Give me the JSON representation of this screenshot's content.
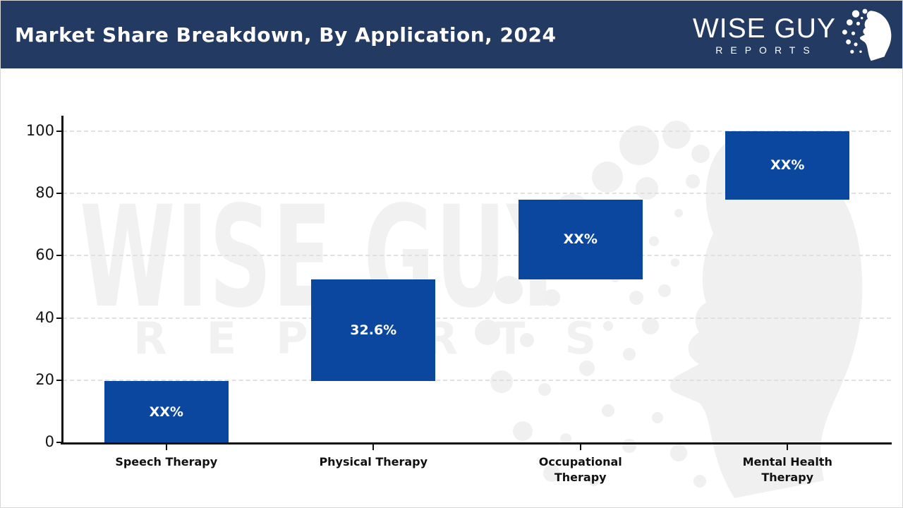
{
  "header": {
    "title": "Market Share Breakdown, By Application, 2024",
    "logo": {
      "line1": "WISE GUY",
      "line2": "REPORTS"
    }
  },
  "watermark": {
    "line1": "WISE GUY",
    "line2": "REPORTS"
  },
  "colors": {
    "header_bg": "#233a63",
    "bar": "#0b479f",
    "grid": "#e0e0e0",
    "axis": "#111111",
    "watermark": "#f1f1f1",
    "logo_text": "#ffffff"
  },
  "chart_data": {
    "type": "bar",
    "subtype": "floating-segment-waterfall",
    "title": "Market Share Breakdown, By Application, 2024",
    "categories": [
      "Speech Therapy",
      "Physical Therapy",
      "Occupational Therapy",
      "Mental Health Therapy"
    ],
    "segments": [
      {
        "category": "Speech Therapy",
        "start": 0,
        "end": 19.7,
        "label": "XX%"
      },
      {
        "category": "Physical Therapy",
        "start": 19.7,
        "end": 52.3,
        "label": "32.6%"
      },
      {
        "category": "Occupational Therapy",
        "start": 52.3,
        "end": 78.1,
        "label": "XX%"
      },
      {
        "category": "Mental Health Therapy",
        "start": 78.1,
        "end": 100,
        "label": "XX%"
      }
    ],
    "xlabel": "",
    "ylabel": "",
    "ylim": [
      0,
      100
    ],
    "yticks": [
      0,
      20,
      40,
      60,
      80,
      100
    ],
    "grid": "horizontal-dashed",
    "legend": "none",
    "bar_color": "#0b479f",
    "value_label_color": "#ffffff"
  }
}
